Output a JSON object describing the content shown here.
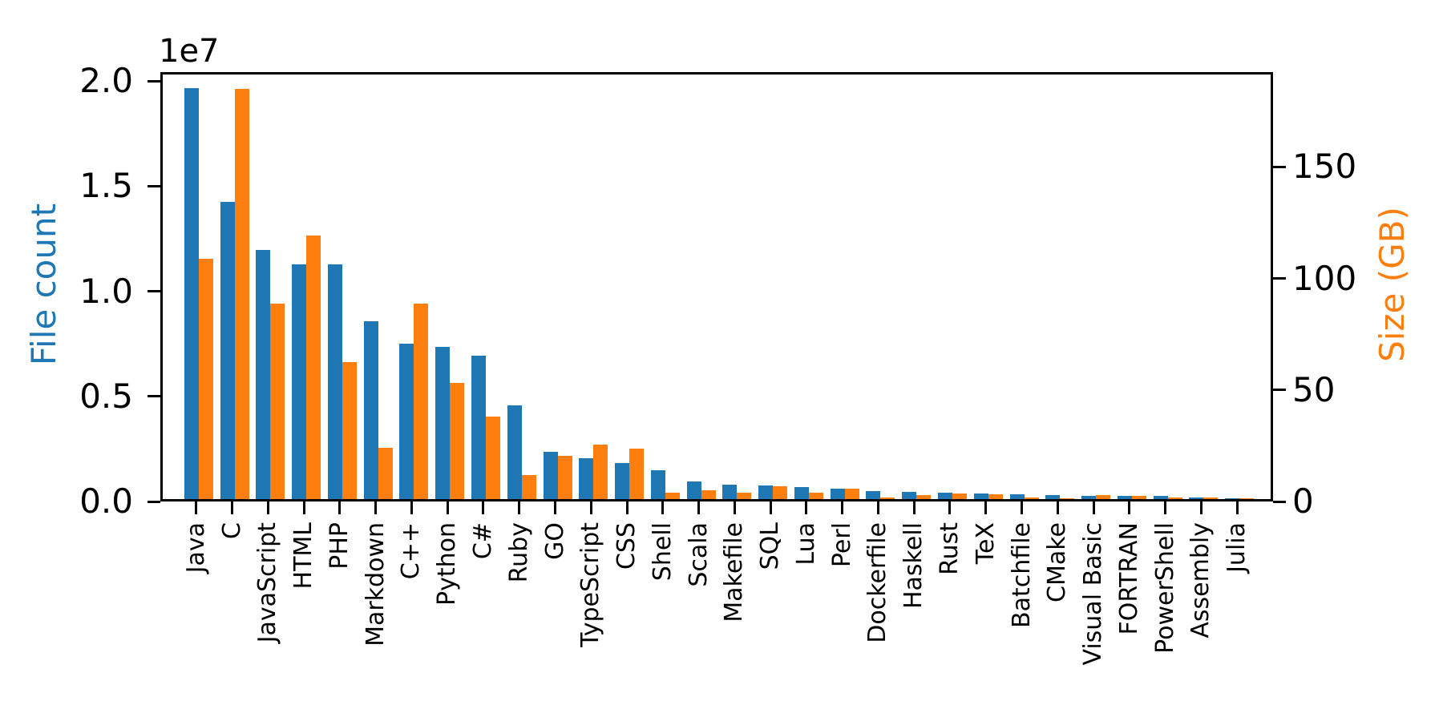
{
  "figure": {
    "left_axis_label": "File count",
    "right_axis_label": "Size (GB)",
    "offset_text": "1e7",
    "colors": {
      "file_count_bar": "#1f77b4",
      "size_bar": "#ff7f0e",
      "axis": "#000000",
      "background": "#ffffff"
    }
  },
  "chart_data": {
    "type": "bar",
    "title": "",
    "xlabel": "",
    "grid": false,
    "legend": "none",
    "categories": [
      "Java",
      "C",
      "JavaScript",
      "HTML",
      "PHP",
      "Markdown",
      "C++",
      "Python",
      "C#",
      "Ruby",
      "GO",
      "TypeScript",
      "CSS",
      "Shell",
      "Scala",
      "Makefile",
      "SQL",
      "Lua",
      "Perl",
      "Dockerfile",
      "Haskell",
      "Rust",
      "TeX",
      "Batchfile",
      "CMake",
      "Visual Basic",
      "FORTRAN",
      "PowerShell",
      "Assembly",
      "Julia"
    ],
    "series": [
      {
        "name": "File count",
        "axis": "left",
        "color": "#1f77b4",
        "values": [
          19548190,
          14143113,
          11839883,
          11178557,
          11177610,
          8464626,
          7380520,
          7226626,
          6811652,
          4473331,
          2265436,
          1940406,
          1734406,
          1385648,
          835755,
          679430,
          656671,
          578554,
          497949,
          366505,
          340623,
          322431,
          251015,
          236945,
          175282,
          155652,
          142038,
          136846,
          82905,
          58317
        ]
      },
      {
        "name": "Size (GB)",
        "axis": "right",
        "color": "#ff7f0e",
        "values": [
          107.7,
          183.83,
          87.82,
          118.12,
          61.41,
          23.09,
          87.73,
          52.03,
          36.83,
          10.95,
          19.28,
          24.59,
          22.67,
          3.01,
          3.87,
          2.92,
          5.67,
          2.81,
          4.7,
          0.71,
          1.85,
          2.68,
          2.15,
          0.7,
          0.54,
          1.91,
          1.62,
          0.69,
          0.78,
          0.29
        ]
      }
    ],
    "left_axis": {
      "label": "File count",
      "scale_note": "1e7",
      "tick_values": [
        0,
        5000000,
        10000000,
        15000000,
        20000000
      ],
      "tick_labels": [
        "0.0",
        "0.5",
        "1.0",
        "1.5",
        "2.0"
      ],
      "range": [
        0,
        20420000
      ]
    },
    "right_axis": {
      "label": "Size (GB)",
      "tick_values": [
        0,
        50,
        100,
        150
      ],
      "tick_labels": [
        "0",
        "50",
        "100",
        "150"
      ],
      "range": [
        0,
        192.5
      ]
    }
  }
}
